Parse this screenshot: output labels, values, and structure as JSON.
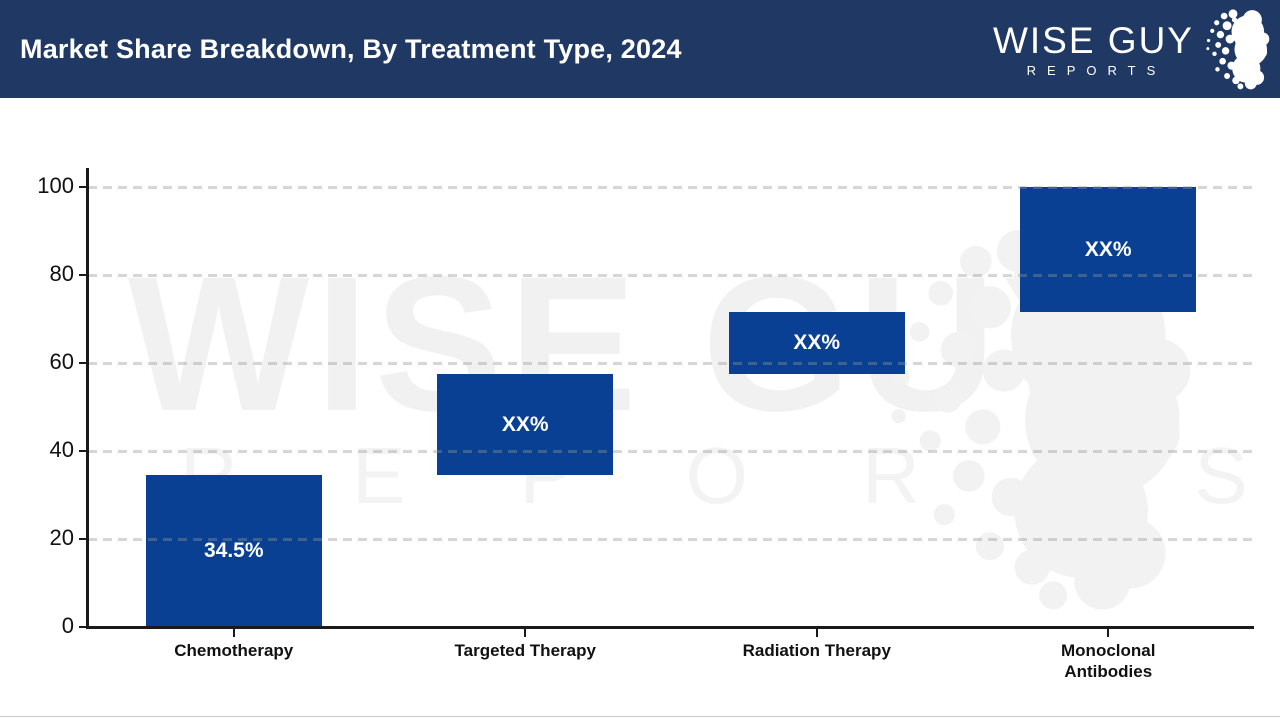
{
  "header": {
    "title": "Market Share Breakdown, By Treatment Type, 2024",
    "logo": {
      "line1": "WISE GUY",
      "line2": "REPORTS"
    }
  },
  "watermark": {
    "line1": "WISE GUY",
    "line2": "R E P O R T S"
  },
  "chart_data": {
    "type": "bar",
    "subtype": "waterfall",
    "title": "Market Share Breakdown, By Treatment Type, 2024",
    "categories": [
      "Chemotherapy",
      "Targeted Therapy",
      "Radiation Therapy",
      "Monoclonal Antibodies"
    ],
    "segments": [
      {
        "category": "Chemotherapy",
        "start": 0,
        "end": 34.5,
        "label": "34.5%"
      },
      {
        "category": "Targeted Therapy",
        "start": 34.5,
        "end": 57.5,
        "label": "XX%"
      },
      {
        "category": "Radiation Therapy",
        "start": 57.5,
        "end": 71.5,
        "label": "XX%"
      },
      {
        "category": "Monoclonal Antibodies",
        "start": 71.5,
        "end": 100,
        "label": "XX%"
      }
    ],
    "xlabel": "",
    "ylabel": "",
    "ylim": [
      0,
      100
    ],
    "yticks": [
      0,
      20,
      40,
      60,
      80,
      100
    ],
    "grid": "horizontal-dashed",
    "legend": "none",
    "bar_color": "#0a4094",
    "bar_label_color": "#ffffff"
  },
  "colors": {
    "header_bg": "#203864",
    "bar": "#0a4094",
    "axis": "#1a1a1a",
    "watermark_text": "#f1f1f1"
  }
}
